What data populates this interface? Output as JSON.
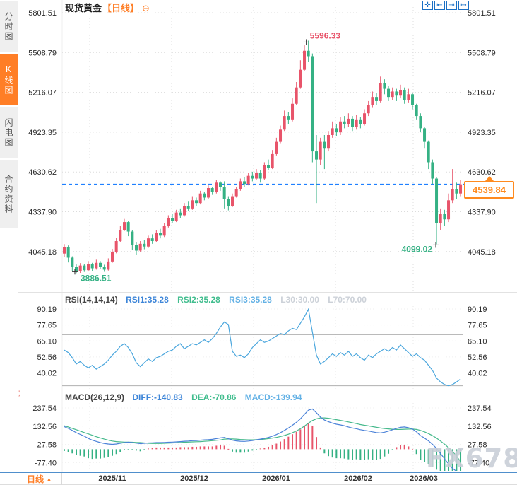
{
  "window": {
    "title": "现货黄金",
    "period_tag": "【日线】",
    "collapse_icon": "⊖"
  },
  "sidebar": {
    "tabs": [
      {
        "label": "分时图",
        "active": false
      },
      {
        "label": "K线图",
        "active": true
      },
      {
        "label": "闪电图",
        "active": false
      },
      {
        "label": "合约资料",
        "active": false
      }
    ]
  },
  "toolbar": {
    "icons": [
      {
        "name": "pan-crosshair",
        "glyph": "✛"
      },
      {
        "name": "range-zoom-in",
        "glyph": "⇤"
      },
      {
        "name": "range-zoom-out",
        "glyph": "⇥"
      },
      {
        "name": "jump-to-latest",
        "glyph": "↦"
      }
    ]
  },
  "rsi_panel": {
    "title": "RSI(14,14,14)",
    "legend": [
      {
        "label": "RSI1:35.28",
        "color": "#3d85d8"
      },
      {
        "label": "RSI2:35.28",
        "color": "#41bd8e"
      },
      {
        "label": "RSI3:35.28",
        "color": "#63b1e5"
      },
      {
        "label": "L30:30.00",
        "color": "#ccd1d8"
      },
      {
        "label": "L70:70.00",
        "color": "#ccd1d8"
      }
    ]
  },
  "macd_panel": {
    "title": "MACD(26,12,9)",
    "legend": [
      {
        "label": "DIFF:-140.83",
        "color": "#3d85d8"
      },
      {
        "label": "DEA:-70.86",
        "color": "#41bd8e"
      },
      {
        "label": "MACD:-139.94",
        "color": "#63b1e5"
      }
    ]
  },
  "bottom_bar": {
    "period_label": "日线",
    "arrow": "▲"
  },
  "watermark": "FX678",
  "colors": {
    "up": "#e8546a",
    "down": "#35b184",
    "accent_orange": "#ff7e26",
    "dashed_line": "#1f80ff",
    "rsi_line": "#4aa6dd",
    "diff_line": "#4b82d8",
    "dea_line": "#46b98c",
    "grid": "#dcdcdc",
    "axis_text": "#2b2b2b",
    "level_line": "#b0b0b0",
    "marker": "#222222",
    "watermark": "#c9cfd8"
  },
  "chart_data": {
    "type": "candlestick+rsi+macd",
    "title": "现货黄金 日线",
    "x_axis": [
      "2025/11",
      "2025/12",
      "2026/01",
      "2026/02",
      "2026/03"
    ],
    "main": {
      "y_axis_labels": [
        "5801.51",
        "5508.79",
        "5216.07",
        "4923.35",
        "4630.62",
        "4337.90",
        "4045.18"
      ],
      "y_axis_values": [
        5801.51,
        5508.79,
        5216.07,
        4923.35,
        4630.62,
        4337.9,
        4045.18
      ],
      "last_price": 4539.84,
      "last_price_label": "4539.84",
      "annotations": {
        "high": {
          "label": "5596.33",
          "value": 5596.33,
          "candle": 61
        },
        "low": {
          "label": "3886.51",
          "value": 3886.51,
          "candle": 3
        },
        "swing_low": {
          "label": "4099.02",
          "value": 4099.02,
          "candle": 93
        }
      },
      "candles": [
        [
          4030,
          4100,
          4005,
          4080
        ],
        [
          4080,
          4090,
          3965,
          4000
        ],
        [
          4000,
          4010,
          3900,
          3930
        ],
        [
          3930,
          3950,
          3886.51,
          3900
        ],
        [
          3900,
          3960,
          3888,
          3942
        ],
        [
          3942,
          3955,
          3895,
          3908
        ],
        [
          3908,
          3975,
          3898,
          3952
        ],
        [
          3952,
          3962,
          3900,
          3922
        ],
        [
          3922,
          3985,
          3912,
          3962
        ],
        [
          3962,
          3975,
          3915,
          3932
        ],
        [
          3932,
          3948,
          3896,
          3912
        ],
        [
          3912,
          3995,
          3905,
          3972
        ],
        [
          3972,
          4065,
          3962,
          4042
        ],
        [
          4042,
          4145,
          4032,
          4122
        ],
        [
          4122,
          4235,
          4112,
          4205
        ],
        [
          4205,
          4285,
          4195,
          4262
        ],
        [
          4262,
          4272,
          4158,
          4192
        ],
        [
          4192,
          4202,
          4058,
          4092
        ],
        [
          4092,
          4112,
          4022,
          4052
        ],
        [
          4052,
          4122,
          4042,
          4102
        ],
        [
          4102,
          4132,
          4062,
          4082
        ],
        [
          4082,
          4162,
          4072,
          4142
        ],
        [
          4142,
          4172,
          4102,
          4122
        ],
        [
          4122,
          4202,
          4112,
          4182
        ],
        [
          4182,
          4212,
          4142,
          4162
        ],
        [
          4162,
          4252,
          4152,
          4232
        ],
        [
          4232,
          4312,
          4222,
          4292
        ],
        [
          4292,
          4322,
          4252,
          4272
        ],
        [
          4272,
          4352,
          4262,
          4332
        ],
        [
          4332,
          4362,
          4292,
          4312
        ],
        [
          4312,
          4402,
          4302,
          4382
        ],
        [
          4382,
          4412,
          4342,
          4362
        ],
        [
          4362,
          4452,
          4352,
          4422
        ],
        [
          4422,
          4442,
          4382,
          4402
        ],
        [
          4402,
          4492,
          4392,
          4472
        ],
        [
          4472,
          4482,
          4422,
          4442
        ],
        [
          4442,
          4532,
          4432,
          4512
        ],
        [
          4512,
          4522,
          4462,
          4482
        ],
        [
          4482,
          4572,
          4472,
          4552
        ],
        [
          4552,
          4562,
          4492,
          4522
        ],
        [
          4522,
          4562,
          4362,
          4432
        ],
        [
          4432,
          4452,
          4348,
          4382
        ],
        [
          4382,
          4472,
          4372,
          4452
        ],
        [
          4452,
          4522,
          4442,
          4502
        ],
        [
          4502,
          4582,
          4492,
          4562
        ],
        [
          4562,
          4592,
          4522,
          4542
        ],
        [
          4542,
          4622,
          4532,
          4602
        ],
        [
          4602,
          4632,
          4562,
          4582
        ],
        [
          4582,
          4652,
          4572,
          4622
        ],
        [
          4622,
          4642,
          4552,
          4582
        ],
        [
          4582,
          4702,
          4572,
          4682
        ],
        [
          4682,
          4722,
          4642,
          4662
        ],
        [
          4662,
          4792,
          4652,
          4762
        ],
        [
          4762,
          4882,
          4752,
          4852
        ],
        [
          4852,
          4972,
          4842,
          4942
        ],
        [
          4942,
          5082,
          4932,
          5042
        ],
        [
          5042,
          5072,
          4982,
          5012
        ],
        [
          5012,
          5172,
          5002,
          5132
        ],
        [
          5132,
          5292,
          5122,
          5252
        ],
        [
          5252,
          5452,
          5242,
          5382
        ],
        [
          5382,
          5562,
          5372,
          5522
        ],
        [
          5522,
          5596.33,
          5442,
          5482
        ],
        [
          5482,
          5502,
          4702,
          4782
        ],
        [
          4782,
          4902,
          4402,
          4722
        ],
        [
          4722,
          4882,
          4682,
          4852
        ],
        [
          4852,
          4902,
          4652,
          4802
        ],
        [
          4802,
          4932,
          4782,
          4902
        ],
        [
          4902,
          5002,
          4882,
          4952
        ],
        [
          4952,
          4982,
          4892,
          4922
        ],
        [
          4922,
          5032,
          4902,
          5002
        ],
        [
          5002,
          5042,
          4952,
          4982
        ],
        [
          4982,
          5062,
          4962,
          5022
        ],
        [
          5022,
          5042,
          4932,
          4962
        ],
        [
          4962,
          5052,
          4942,
          5012
        ],
        [
          5012,
          5032,
          4952,
          4982
        ],
        [
          4982,
          5092,
          4972,
          5062
        ],
        [
          5062,
          5152,
          5042,
          5122
        ],
        [
          5122,
          5222,
          5102,
          5182
        ],
        [
          5182,
          5212,
          5122,
          5152
        ],
        [
          5152,
          5332,
          5142,
          5282
        ],
        [
          5282,
          5312,
          5202,
          5242
        ],
        [
          5242,
          5262,
          5152,
          5182
        ],
        [
          5182,
          5252,
          5162,
          5222
        ],
        [
          5222,
          5242,
          5152,
          5192
        ],
        [
          5192,
          5272,
          5172,
          5232
        ],
        [
          5232,
          5252,
          5132,
          5162
        ],
        [
          5162,
          5242,
          5142,
          5202
        ],
        [
          5202,
          5212,
          5092,
          5122
        ],
        [
          5122,
          5132,
          5012,
          5042
        ],
        [
          5042,
          5062,
          4922,
          4952
        ],
        [
          4952,
          4962,
          4802,
          4852
        ],
        [
          4852,
          4862,
          4652,
          4702
        ],
        [
          4702,
          4722,
          4542,
          4582
        ],
        [
          4582,
          4592,
          4099.02,
          4252
        ],
        [
          4252,
          4362,
          4202,
          4322
        ],
        [
          4322,
          4352,
          4232,
          4282
        ],
        [
          4282,
          4472,
          4262,
          4422
        ],
        [
          4422,
          4652,
          4402,
          4502
        ],
        [
          4502,
          4552,
          4432,
          4472
        ],
        [
          4472,
          4572,
          4452,
          4539.84
        ]
      ]
    },
    "rsi": {
      "y_axis_labels": [
        "90.19",
        "77.65",
        "65.10",
        "52.56",
        "40.02"
      ],
      "y_axis_values": [
        90.19,
        77.65,
        65.1,
        52.56,
        40.02
      ],
      "levels": {
        "upper": 70,
        "lower": 30
      },
      "values": [
        58,
        56,
        52,
        47,
        49,
        46,
        44,
        46,
        43,
        45,
        47,
        50,
        54,
        57,
        61,
        63,
        60,
        55,
        48,
        45,
        48,
        51,
        49,
        52,
        53,
        55,
        57,
        58,
        61,
        63,
        59,
        61,
        63,
        62,
        64,
        66,
        64,
        67,
        71,
        76,
        80,
        78,
        57,
        53,
        54,
        52,
        55,
        60,
        63,
        66,
        64,
        65,
        67,
        69,
        71,
        70,
        73,
        75,
        74,
        79,
        84,
        90,
        72,
        54,
        47,
        49,
        52,
        55,
        53,
        56,
        54,
        57,
        53,
        55,
        52,
        50,
        54,
        52,
        55,
        57,
        59,
        57,
        60,
        58,
        62,
        59,
        56,
        53,
        55,
        52,
        50,
        46,
        42,
        36,
        33,
        31,
        30,
        31,
        33,
        35.28
      ]
    },
    "macd": {
      "y_axis_labels": [
        "237.54",
        "132.56",
        "27.58",
        "-77.40"
      ],
      "y_axis_values": [
        237.54,
        132.56,
        27.58,
        -77.4
      ],
      "diff": [
        130,
        120,
        108,
        95,
        85,
        75,
        62,
        52,
        45,
        38,
        33,
        30,
        28,
        30,
        34,
        38,
        40,
        38,
        35,
        32,
        34,
        36,
        37,
        38,
        38,
        39,
        40,
        41,
        42,
        44,
        46,
        47,
        49,
        50,
        52,
        54,
        55,
        57,
        61,
        65,
        68,
        60,
        52,
        48,
        46,
        45,
        47,
        50,
        54,
        58,
        62,
        68,
        75,
        84,
        95,
        108,
        122,
        138,
        155,
        175,
        200,
        225,
        232,
        210,
        185,
        168,
        158,
        150,
        144,
        140,
        135,
        128,
        122,
        118,
        112,
        108,
        105,
        100,
        96,
        94,
        98,
        104,
        112,
        120,
        126,
        128,
        124,
        116,
        100,
        78,
        64,
        48,
        28,
        5,
        -25,
        -55,
        -85,
        -110,
        -128,
        -140.83
      ],
      "dea": [
        135,
        128,
        120,
        112,
        104,
        96,
        88,
        80,
        72,
        65,
        58,
        52,
        47,
        44,
        42,
        41,
        41,
        40,
        39,
        38,
        36,
        34,
        33,
        33,
        33,
        34,
        35,
        36,
        37,
        38,
        40,
        41,
        42,
        43,
        44,
        46,
        47,
        49,
        51,
        53,
        58,
        59,
        59,
        58,
        56,
        55,
        54,
        54,
        55,
        56,
        58,
        61,
        64,
        68,
        73,
        79,
        86,
        95,
        105,
        118,
        133,
        150,
        165,
        175,
        180,
        180,
        178,
        174,
        170,
        166,
        162,
        157,
        152,
        147,
        142,
        138,
        134,
        130,
        126,
        122,
        119,
        117,
        115,
        114,
        114,
        115,
        116,
        116,
        114,
        108,
        100,
        90,
        78,
        64,
        47,
        29,
        9,
        -13,
        -40,
        -70.86
      ]
    }
  }
}
